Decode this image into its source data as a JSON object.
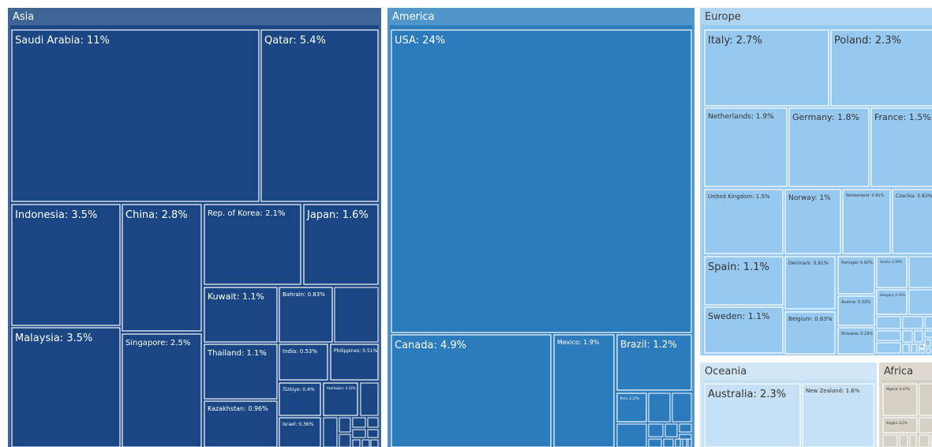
{
  "chart_data": {
    "type": "treemap",
    "unit": "%",
    "colors": {
      "Asia": "#1a4784",
      "America": "#2c7bbc",
      "Europe": "#97c8ef",
      "Oceania": "#c6e0f5",
      "Africa": "#d4d0c4",
      "Asia_header": "#3e6596",
      "America_header": "#5096cb",
      "Europe_header": "#aed4f3",
      "Oceania_header": "#d1e7f8",
      "Africa_header": "#ddd9cf"
    },
    "groups": [
      {
        "name": "Asia",
        "items": [
          {
            "label": "Saudi Arabia",
            "value": 11,
            "text": "Saudi Arabia: 11%"
          },
          {
            "label": "Qatar",
            "value": 5.4,
            "text": "Qatar: 5.4%"
          },
          {
            "label": "Indonesia",
            "value": 3.5,
            "text": "Indonesia: 3.5%"
          },
          {
            "label": "Malaysia",
            "value": 3.5,
            "text": "Malaysia: 3.5%"
          },
          {
            "label": "China",
            "value": 2.8,
            "text": "China: 2.8%"
          },
          {
            "label": "Singapore",
            "value": 2.5,
            "text": "Singapore: 2.5%"
          },
          {
            "label": "Rep. of Korea",
            "value": 2.1,
            "text": "Rep. of Korea: 2.1%"
          },
          {
            "label": "Japan",
            "value": 1.6,
            "text": "Japan: 1.6%"
          },
          {
            "label": "Kuwait",
            "value": 1.1,
            "text": "Kuwait: 1.1%"
          },
          {
            "label": "Bahrain",
            "value": 0.83,
            "text": "Bahrain: 0.83%"
          },
          {
            "label": "Thailand",
            "value": 1.1,
            "text": "Thailand: 1.1%"
          },
          {
            "label": "India",
            "value": 0.53,
            "text": "India: 0.53%"
          },
          {
            "label": "Philippines",
            "value": 0.51,
            "text": "Philippines: 0.51%"
          },
          {
            "label": "Kazakhstan",
            "value": 0.96,
            "text": "Kazakhstan: 0.96%"
          },
          {
            "label": "Türkiye",
            "value": 0.4,
            "text": "Türkiye: 0.4%"
          },
          {
            "label": "Azerbaijan",
            "value": 0.32,
            "text": "Azerbaijan: 0.32%"
          },
          {
            "label": "Israel",
            "value": 0.36,
            "text": "Israel: 0.36%"
          }
        ]
      },
      {
        "name": "America",
        "items": [
          {
            "label": "USA",
            "value": 24,
            "text": "USA: 24%"
          },
          {
            "label": "Canada",
            "value": 4.9,
            "text": "Canada: 4.9%"
          },
          {
            "label": "Mexico",
            "value": 1.9,
            "text": "Mexico: 1.9%"
          },
          {
            "label": "Brazil",
            "value": 1.2,
            "text": "Brazil: 1.2%"
          },
          {
            "label": "Peru",
            "value": 0.27,
            "text": "Peru: 0.27%"
          }
        ]
      },
      {
        "name": "Europe",
        "items": [
          {
            "label": "Italy",
            "value": 2.7,
            "text": "Italy: 2.7%"
          },
          {
            "label": "Poland",
            "value": 2.3,
            "text": "Poland: 2.3%"
          },
          {
            "label": "Netherlands",
            "value": 1.9,
            "text": "Netherlands: 1.9%"
          },
          {
            "label": "Germany",
            "value": 1.8,
            "text": "Germany: 1.8%"
          },
          {
            "label": "France",
            "value": 1.5,
            "text": "France: 1.5%"
          },
          {
            "label": "United Kingdom",
            "value": 1.5,
            "text": "United Kingdom: 1.5%"
          },
          {
            "label": "Norway",
            "value": 1,
            "text": "Norway: 1%"
          },
          {
            "label": "Switzerland",
            "value": 0.91,
            "text": "Switzerland: 0.91%"
          },
          {
            "label": "Czechia",
            "value": 0.83,
            "text": "Czechia: 0.83%"
          },
          {
            "label": "Spain",
            "value": 1.1,
            "text": "Spain: 1.1%"
          },
          {
            "label": "Denmark",
            "value": 0.81,
            "text": "Denmark: 0.81%"
          },
          {
            "label": "Portugal",
            "value": 0.42,
            "text": "Portugal: 0.42%"
          },
          {
            "label": "Serbia",
            "value": 0.36,
            "text": "Serbia: 0.36%"
          },
          {
            "label": "Sweden",
            "value": 1.1,
            "text": "Sweden: 1.1%"
          },
          {
            "label": "Belgium",
            "value": 0.63,
            "text": "Belgium: 0.63%"
          },
          {
            "label": "Austria",
            "value": 0.33,
            "text": "Austria: 0.33%"
          },
          {
            "label": "Hungary",
            "value": 0.35,
            "text": "Hungary: 0.35%"
          },
          {
            "label": "Slovakia",
            "value": 0.29,
            "text": "Slovakia: 0.29%"
          }
        ]
      },
      {
        "name": "Oceania",
        "items": [
          {
            "label": "Australia",
            "value": 2.3,
            "text": "Australia: 2.3%"
          },
          {
            "label": "New Zealand",
            "value": 1.6,
            "text": "New Zealand: 1.6%"
          }
        ]
      },
      {
        "name": "Africa",
        "items": [
          {
            "label": "Nigeria",
            "value": 0.47,
            "text": "Nigeria: 0.47%"
          },
          {
            "label": "Angola",
            "value": 0.2,
            "text": "Angola: 0.2%"
          }
        ]
      }
    ]
  }
}
